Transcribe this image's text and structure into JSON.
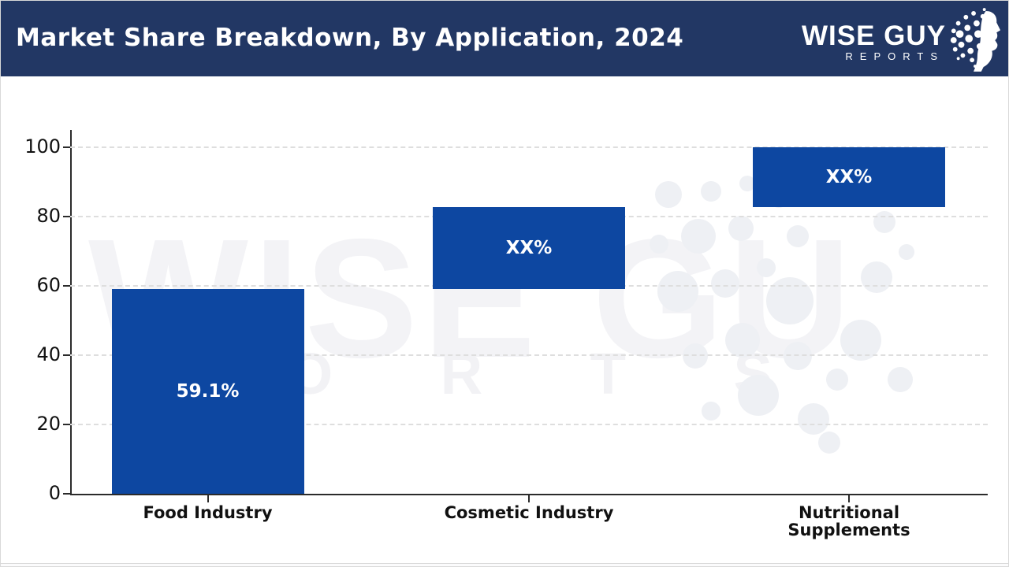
{
  "header": {
    "title": "Market Share Breakdown, By Application, 2024",
    "bg_color": "#223764",
    "logo": {
      "line1": "WISE GUY",
      "line2": "REPORTS"
    }
  },
  "watermark": {
    "line1": "WISE GU",
    "line2": "P O R T S"
  },
  "chart_data": {
    "type": "bar",
    "subtype": "floating-stacked-segments",
    "title": "Market Share Breakdown, By Application, 2024",
    "categories": [
      "Food Industry",
      "Cosmetic Industry",
      "Nutritional Supplements"
    ],
    "segments": [
      {
        "category": "Food Industry",
        "start": 0,
        "end": 59.1,
        "label": "59.1%"
      },
      {
        "category": "Cosmetic Industry",
        "start": 59.1,
        "end": 82.8,
        "label": "XX%"
      },
      {
        "category": "Nutritional Supplements",
        "start": 82.8,
        "end": 100,
        "label": "XX%"
      }
    ],
    "ylim": [
      0,
      100
    ],
    "yticks": [
      0,
      20,
      40,
      60,
      80,
      100
    ],
    "xlabel": "",
    "ylabel": "",
    "grid": "horizontal-dashed",
    "legend": "none",
    "bar_color": "#0d47a1",
    "bar_label_color": "#ffffff",
    "axis_color": "#2b2b2b"
  }
}
